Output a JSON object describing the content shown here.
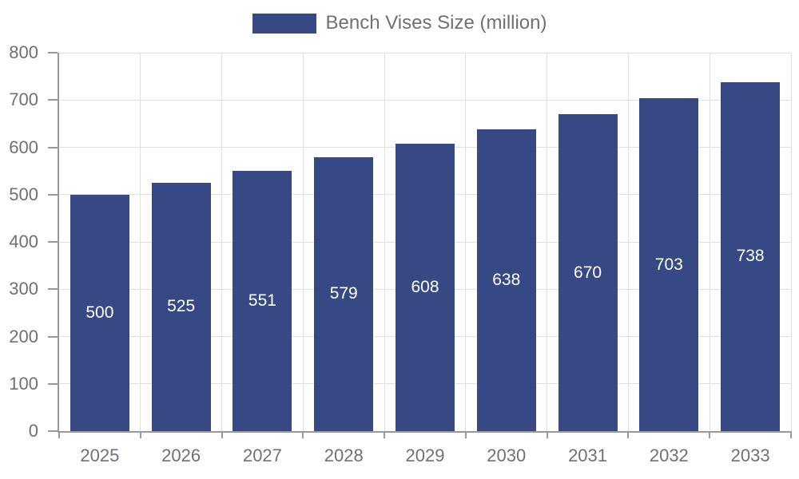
{
  "legend": {
    "label": "Bench Vises Size (million)"
  },
  "chart_data": {
    "type": "bar",
    "title": "Bench Vises Size (million)",
    "series_name": "Bench Vises Size (million)",
    "categories": [
      "2025",
      "2026",
      "2027",
      "2028",
      "2029",
      "2030",
      "2031",
      "2032",
      "2033"
    ],
    "values": [
      500,
      525,
      551,
      579,
      608,
      638,
      670,
      703,
      738
    ],
    "xlabel": "",
    "ylabel": "",
    "ylim": [
      0,
      800
    ],
    "y_ticks": [
      0,
      100,
      200,
      300,
      400,
      500,
      600,
      700,
      800
    ],
    "grid": "both",
    "legend_position": "top-center",
    "bar_label_position": "inside-middle",
    "colors": {
      "bar": "#364985",
      "axis_line": "#999999",
      "grid_line": "#e0e0e0",
      "tick_label": "#6e7079",
      "legend_text": "#707070",
      "bar_label": "#ffffff",
      "background": "#ffffff"
    }
  }
}
